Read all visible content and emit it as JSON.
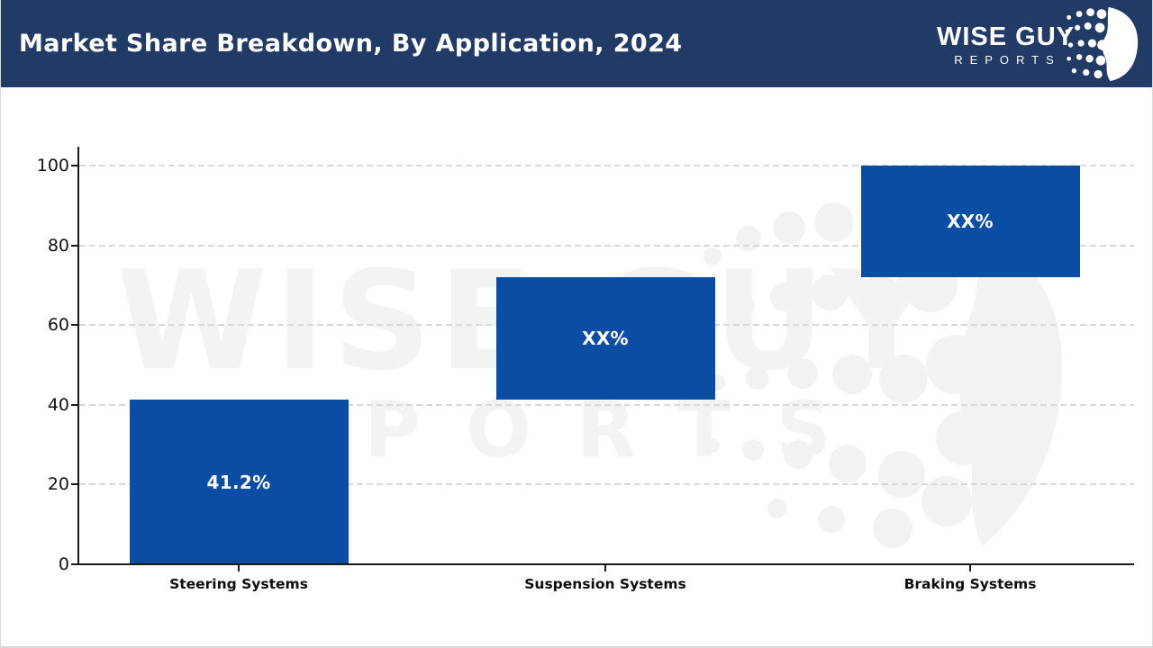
{
  "header": {
    "title": "Market Share Breakdown, By Application, 2024",
    "bg_color": "#213a66",
    "logo_line1": "WISE GUY",
    "logo_line2": "REPORTS"
  },
  "watermark": {
    "line1": "WISE GUY",
    "line2": "REPORTS"
  },
  "chart_data": {
    "type": "bar",
    "subtype": "floating-waterfall",
    "title": "Market Share Breakdown, By Application, 2024",
    "categories": [
      "Steering Systems",
      "Suspension Systems",
      "Braking Systems"
    ],
    "segments": [
      {
        "category": "Steering Systems",
        "start": 0,
        "end": 41.2,
        "label": "41.2%"
      },
      {
        "category": "Suspension Systems",
        "start": 41.2,
        "end": 72,
        "label": "XX%"
      },
      {
        "category": "Braking Systems",
        "start": 72,
        "end": 100,
        "label": "XX%"
      }
    ],
    "yticks": [
      0,
      20,
      40,
      60,
      80,
      100
    ],
    "ytick_labels": [
      "0",
      "20",
      "40",
      "60",
      "80",
      "100"
    ],
    "ylim": [
      0,
      104.8
    ],
    "xlabel": "",
    "ylabel": "",
    "grid": "horizontal-dashed",
    "legend": "none",
    "bar_color": "#0b4da2",
    "value_label_color": "#ffffff",
    "gridline_color": "#d8d8d8",
    "axis_color": "#1a1a1a"
  }
}
